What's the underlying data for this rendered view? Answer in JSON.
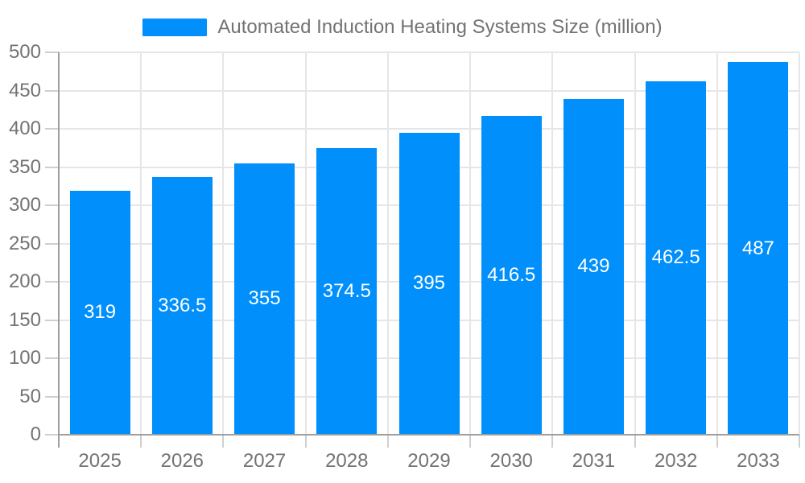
{
  "chart_data": {
    "type": "bar",
    "title": "Automated Induction Heating Systems Size (million)",
    "categories": [
      "2025",
      "2026",
      "2027",
      "2028",
      "2029",
      "2030",
      "2031",
      "2032",
      "2033"
    ],
    "series": [
      {
        "name": "Automated Induction Heating Systems Size (million)",
        "values": [
          319,
          336.5,
          355,
          374.5,
          395,
          416.5,
          439,
          462.5,
          487
        ],
        "color": "#008FFB"
      }
    ],
    "data_labels": [
      "319",
      "336.5",
      "355",
      "374.5",
      "395",
      "416.5",
      "439",
      "462.5",
      "487"
    ],
    "xlabel": "",
    "ylabel": "",
    "ylim": [
      0,
      500
    ],
    "ytick_step": 50,
    "yticks": [
      "0",
      "50",
      "100",
      "150",
      "200",
      "250",
      "300",
      "350",
      "400",
      "450",
      "500"
    ],
    "grid": true,
    "legend_position": "top"
  },
  "colors": {
    "bar": "#008FFB",
    "bar_label": "#ffffff",
    "axis_line": "#9e9e9e",
    "grid_line": "#e6e6e6",
    "tick": "#cfcfcf",
    "axis_text": "#737373",
    "legend_text": "#737373",
    "background": "#ffffff"
  }
}
